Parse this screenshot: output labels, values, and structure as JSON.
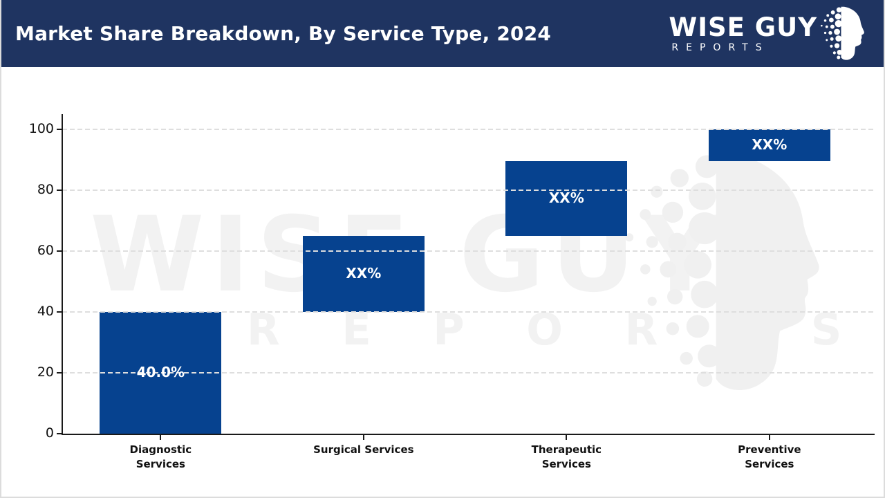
{
  "header": {
    "title": "Market Share Breakdown, By Service Type, 2024",
    "logo": {
      "brand": "WISE GUY",
      "sub": "REPORTS"
    }
  },
  "watermark": {
    "line1": "WISE GUY",
    "line2": "R E P O R T S"
  },
  "chart_data": {
    "type": "bar",
    "subtype": "waterfall-floating-bars",
    "title": "Market Share Breakdown, By Service Type, 2024",
    "categories": [
      "Diagnostic Services",
      "Surgical Services",
      "Therapeutic Services",
      "Preventive Services"
    ],
    "bars": [
      {
        "category": "Diagnostic Services",
        "label_lines": [
          "Diagnostic",
          "Services"
        ],
        "start": 0,
        "end": 40,
        "value_label": "40.0%"
      },
      {
        "category": "Surgical Services",
        "label_lines": [
          "Surgical Services"
        ],
        "start": 40,
        "end": 65,
        "value_label": "XX%"
      },
      {
        "category": "Therapeutic Services",
        "label_lines": [
          "Therapeutic",
          "Services"
        ],
        "start": 65,
        "end": 89.5,
        "value_label": "XX%"
      },
      {
        "category": "Preventive Services",
        "label_lines": [
          "Preventive",
          "Services"
        ],
        "start": 89.5,
        "end": 100,
        "value_label": "XX%"
      }
    ],
    "yticks": [
      0,
      20,
      40,
      60,
      80,
      100
    ],
    "ylim": [
      0,
      105
    ],
    "xlabel": "",
    "ylabel": "",
    "grid": "dashed-horizontal-over-bars",
    "legend": "none",
    "bar_color": "#06428f",
    "bar_label_color": "#ffffff",
    "header_color": "#1f3461",
    "watermark_color": "#f2f2f2"
  }
}
